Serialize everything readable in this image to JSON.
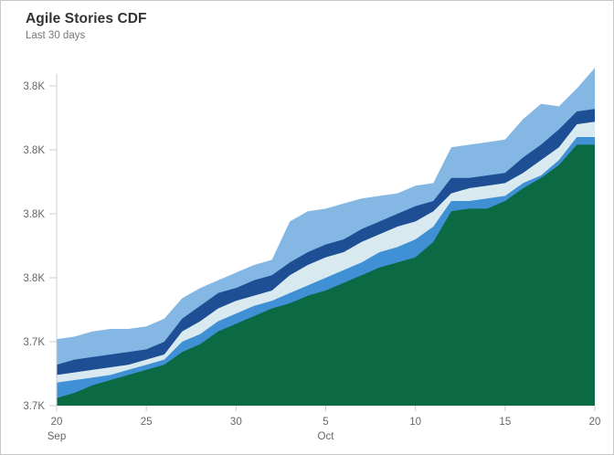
{
  "widget": {
    "title": "Agile Stories CDF",
    "subtitle": "Last 30 days"
  },
  "chart_data": {
    "type": "area",
    "stacked": true,
    "title": "Agile Stories CDF",
    "subtitle": "Last 30 days",
    "grid": false,
    "legend": "none",
    "axis_color": "#cccccc",
    "tick_label_color": "#666666",
    "background_color": "#ffffff",
    "ylim": [
      3700,
      3835
    ],
    "baseline_value": 3700,
    "y_ticks": [
      {
        "value": 3700,
        "label": "3.7K"
      },
      {
        "value": 3725,
        "label": "3.7K"
      },
      {
        "value": 3750,
        "label": "3.8K"
      },
      {
        "value": 3775,
        "label": "3.8K"
      },
      {
        "value": 3800,
        "label": "3.8K"
      },
      {
        "value": 3825,
        "label": "3.8K"
      }
    ],
    "x_labels": [
      "Sep 20",
      "Sep 21",
      "Sep 22",
      "Sep 23",
      "Sep 24",
      "Sep 25",
      "Sep 26",
      "Sep 27",
      "Sep 28",
      "Sep 29",
      "Sep 30",
      "Oct 1",
      "Oct 2",
      "Oct 3",
      "Oct 4",
      "Oct 5",
      "Oct 6",
      "Oct 7",
      "Oct 8",
      "Oct 9",
      "Oct 10",
      "Oct 11",
      "Oct 12",
      "Oct 13",
      "Oct 14",
      "Oct 15",
      "Oct 16",
      "Oct 17",
      "Oct 18",
      "Oct 19",
      "Oct 20"
    ],
    "x_ticks": [
      {
        "day": 0,
        "label": "20",
        "month": "Sep"
      },
      {
        "day": 5,
        "label": "25",
        "month": ""
      },
      {
        "day": 10,
        "label": "30",
        "month": ""
      },
      {
        "day": 15,
        "label": "5",
        "month": "Oct"
      },
      {
        "day": 20,
        "label": "10",
        "month": ""
      },
      {
        "day": 25,
        "label": "15",
        "month": ""
      },
      {
        "day": 30,
        "label": "20",
        "month": ""
      }
    ],
    "series_mode": "cumulative_upper_boundaries_bottom_to_top",
    "series": [
      {
        "name": "band-1-green",
        "color": "#0b6a43",
        "values": [
          3703,
          3705,
          3708,
          3710,
          3712,
          3714,
          3716,
          3721,
          3724,
          3729,
          3732,
          3735,
          3738,
          3740,
          3743,
          3745,
          3748,
          3751,
          3754,
          3756,
          3758,
          3764,
          3776,
          3777,
          3777,
          3780,
          3785,
          3789,
          3794,
          3802,
          3802
        ]
      },
      {
        "name": "band-2-medium-blue",
        "color": "#3f90d5",
        "values": [
          3709,
          3710,
          3711,
          3712,
          3714,
          3716,
          3718,
          3725,
          3728,
          3733,
          3736,
          3739,
          3741,
          3744,
          3747,
          3750,
          3753,
          3756,
          3760,
          3762,
          3765,
          3770,
          3780,
          3780,
          3781,
          3782,
          3787,
          3790,
          3796,
          3805,
          3805
        ]
      },
      {
        "name": "band-3-pale-blue",
        "color": "#d9e9f0",
        "values": [
          3712,
          3713,
          3714,
          3715,
          3716,
          3718,
          3720,
          3729,
          3733,
          3738,
          3741,
          3743,
          3745,
          3751,
          3755,
          3758,
          3760,
          3764,
          3767,
          3770,
          3772,
          3776,
          3783,
          3785,
          3786,
          3787,
          3791,
          3796,
          3801,
          3810,
          3811
        ]
      },
      {
        "name": "band-4-navy",
        "color": "#1e4e94",
        "values": [
          3716,
          3718,
          3719,
          3720,
          3721,
          3722,
          3725,
          3734,
          3739,
          3744,
          3746,
          3749,
          3751,
          3756,
          3760,
          3763,
          3765,
          3769,
          3772,
          3775,
          3778,
          3780,
          3789,
          3789,
          3790,
          3791,
          3797,
          3802,
          3808,
          3815,
          3816
        ]
      },
      {
        "name": "band-5-light-blue",
        "color": "#84b7e3",
        "values": [
          3726,
          3727,
          3729,
          3730,
          3730,
          3731,
          3734,
          3742,
          3746,
          3749,
          3752,
          3755,
          3757,
          3772,
          3776,
          3777,
          3779,
          3781,
          3782,
          3783,
          3786,
          3787,
          3801,
          3802,
          3803,
          3804,
          3812,
          3818,
          3817,
          3824,
          3832
        ]
      }
    ]
  }
}
